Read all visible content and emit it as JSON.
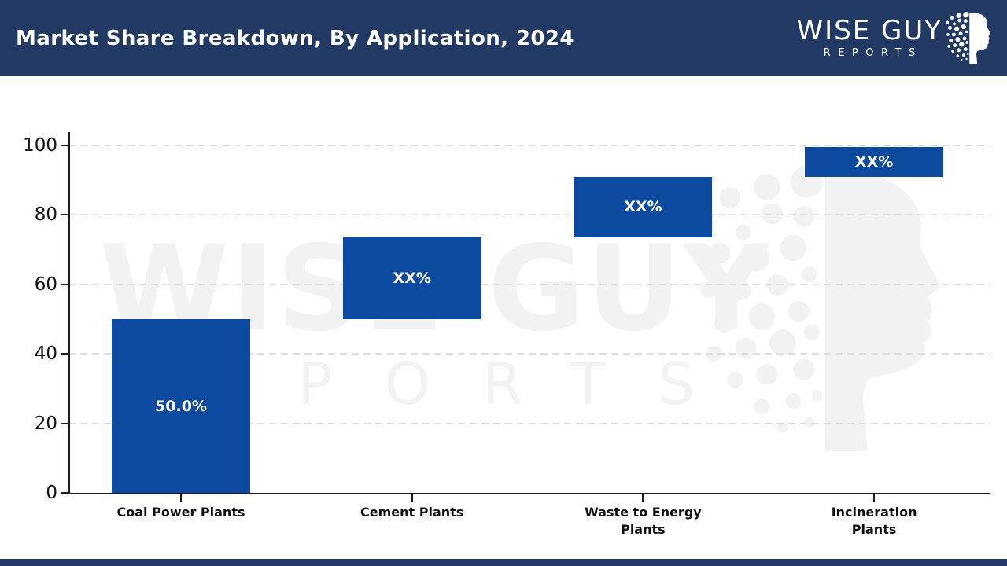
{
  "header": {
    "title": "Market Share Breakdown, By Application, 2024",
    "logo": {
      "main": "WISE GUY",
      "sub": "REPORTS"
    }
  },
  "watermark": {
    "main": "WISE GUY",
    "sub": "REPORTS"
  },
  "colors": {
    "header_bg": "#223a63",
    "footer_bg": "#223a63",
    "bar": "#0b4a9f",
    "grid": "#dedede",
    "axis": "#1c1c1c",
    "bar_label": "#ffffff",
    "tick_label": "#111111",
    "watermark": "#f2f2f2"
  },
  "chart_data": {
    "type": "bar",
    "subtype": "waterfall",
    "title": "Market Share Breakdown, By Application, 2024",
    "categories": [
      "Coal Power Plants",
      "Cement Plants",
      "Waste to Energy Plants",
      "Incineration Plants"
    ],
    "category_lines": [
      [
        "Coal Power Plants"
      ],
      [
        "Cement Plants"
      ],
      [
        "Waste to Energy",
        "Plants"
      ],
      [
        "Incineration",
        "Plants"
      ]
    ],
    "segments": [
      {
        "category": "Coal Power Plants",
        "start": 0,
        "end": 50,
        "label": "50.0%"
      },
      {
        "category": "Cement Plants",
        "start": 50,
        "end": 73.5,
        "label": "XX%"
      },
      {
        "category": "Waste to Energy Plants",
        "start": 73.5,
        "end": 91,
        "label": "XX%"
      },
      {
        "category": "Incineration Plants",
        "start": 91,
        "end": 99.5,
        "label": "XX%"
      }
    ],
    "xlabel": "",
    "ylabel": "",
    "ylim": [
      0,
      100
    ],
    "yticks": [
      0,
      20,
      40,
      60,
      80,
      100
    ],
    "grid": "dashed-horizontal",
    "legend": "none"
  }
}
